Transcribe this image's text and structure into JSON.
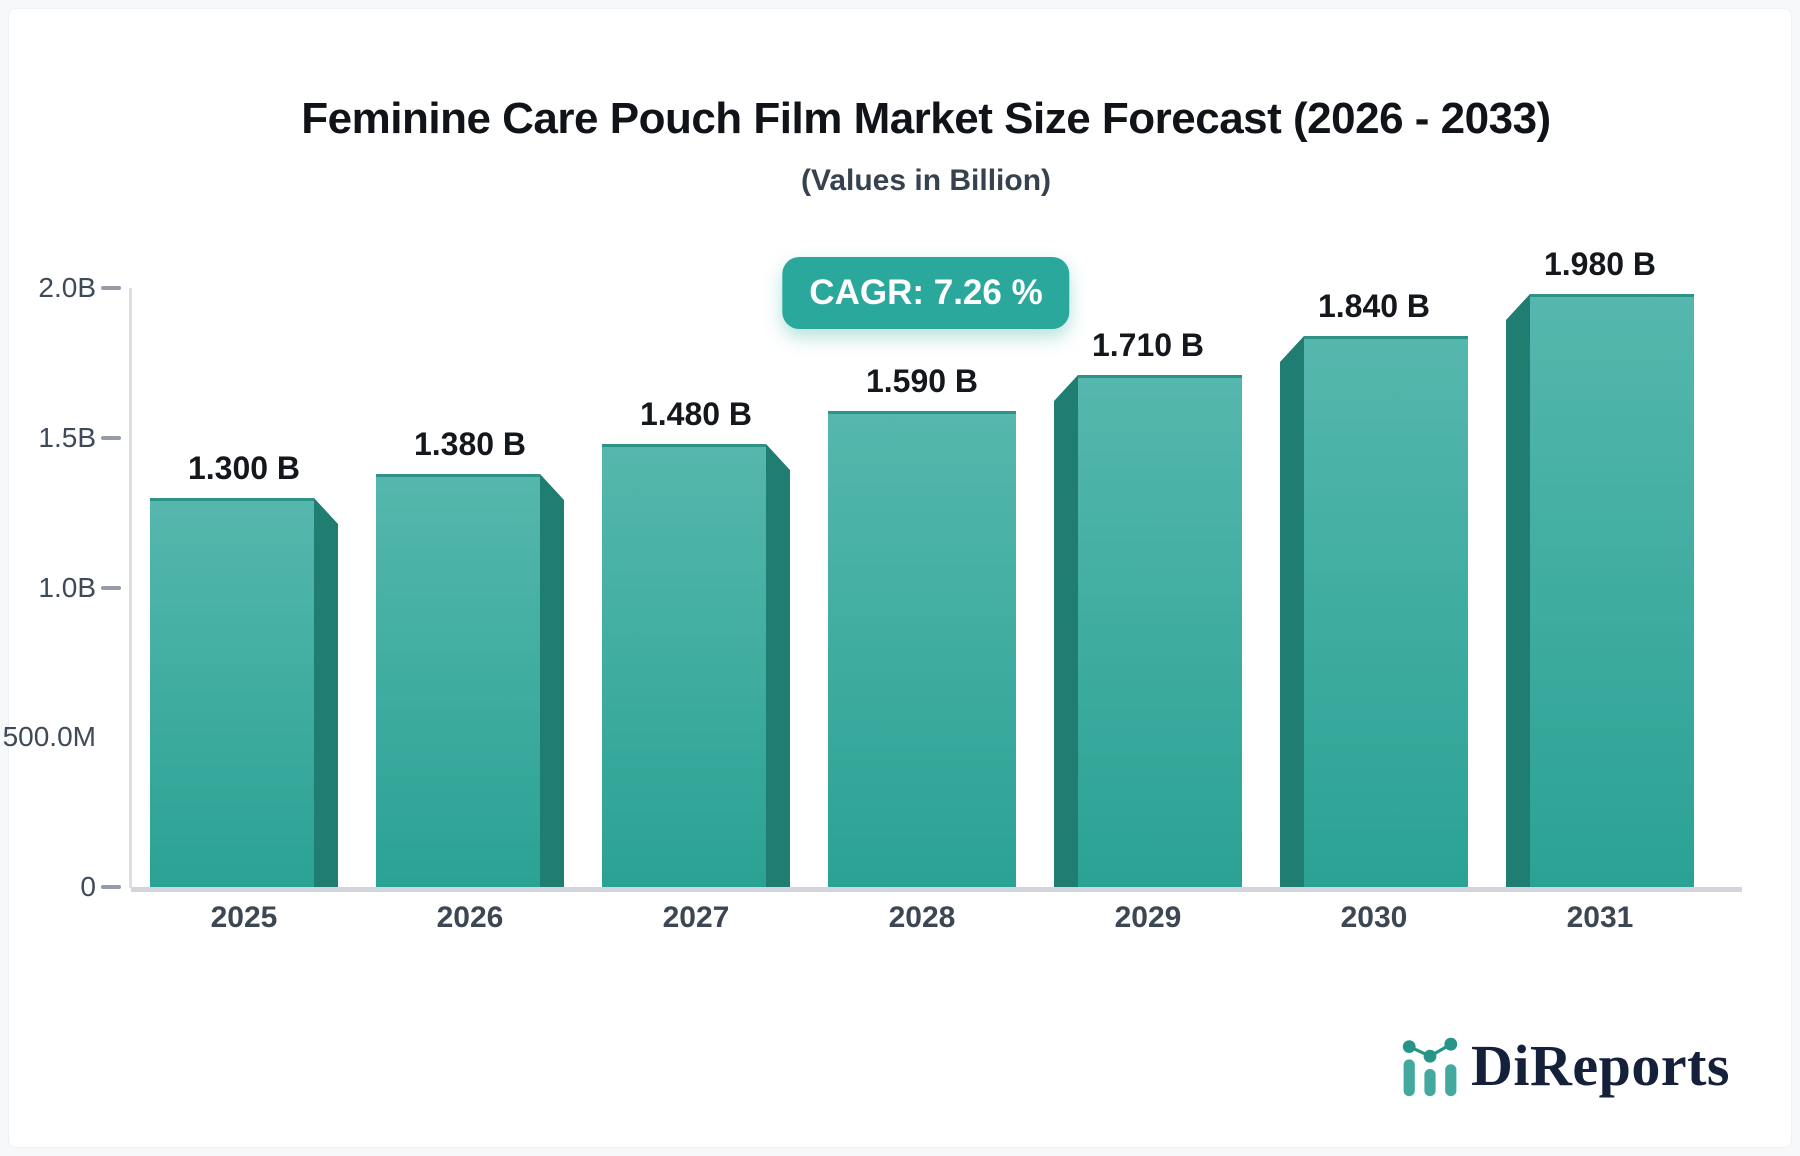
{
  "page": {
    "background": "#f6f8f9",
    "card_background": "#ffffff"
  },
  "header": {
    "title": "Feminine Care Pouch Film Market Size Forecast (2026 - 2033)",
    "subtitle": "(Values in Billion)"
  },
  "badge": {
    "label": "CAGR: 7.26 %",
    "background": "#2aa89c",
    "text_color": "#ffffff"
  },
  "chart_data": {
    "type": "bar",
    "title": "Feminine Care Pouch Film Market Size Forecast (2026 - 2033)",
    "subtitle": "(Values in Billion)",
    "cagr_percent": 7.26,
    "categories": [
      "2025",
      "2026",
      "2027",
      "2028",
      "2029",
      "2030",
      "2031"
    ],
    "values": [
      1.3,
      1.38,
      1.48,
      1.59,
      1.71,
      1.84,
      1.98
    ],
    "value_labels": [
      "1.300 B",
      "1.380 B",
      "1.480 B",
      "1.590 B",
      "1.710 B",
      "1.840 B",
      "1.980 B"
    ],
    "unit": "Billion",
    "ylim": [
      0,
      2.0
    ],
    "yticks": [
      {
        "label": "2.0B",
        "value": 2.0,
        "dash": true
      },
      {
        "label": "1.5B",
        "value": 1.5,
        "dash": true
      },
      {
        "label": "1.0B",
        "value": 1.0,
        "dash": true
      },
      {
        "label": "500.0M",
        "value": 0.5,
        "dash": false
      },
      {
        "label": "0",
        "value": 0.0,
        "dash": true
      }
    ],
    "grid": false,
    "legend": "none",
    "bar_color_top": "#55b7ad",
    "bar_color_bottom": "#2aa294",
    "bar_edge_color": "#2d9387",
    "bar_side_color": "#1f7d71",
    "axis_line_color": "#d2d5dc",
    "tick_label_color": "#3f4a58"
  },
  "footer": {
    "brand": "DiReports",
    "logo_icon": "mini-bar-chart-icon",
    "brand_color": "#15213a",
    "icon_bar_color": "#43a89d",
    "icon_dot_color": "#27948a"
  }
}
